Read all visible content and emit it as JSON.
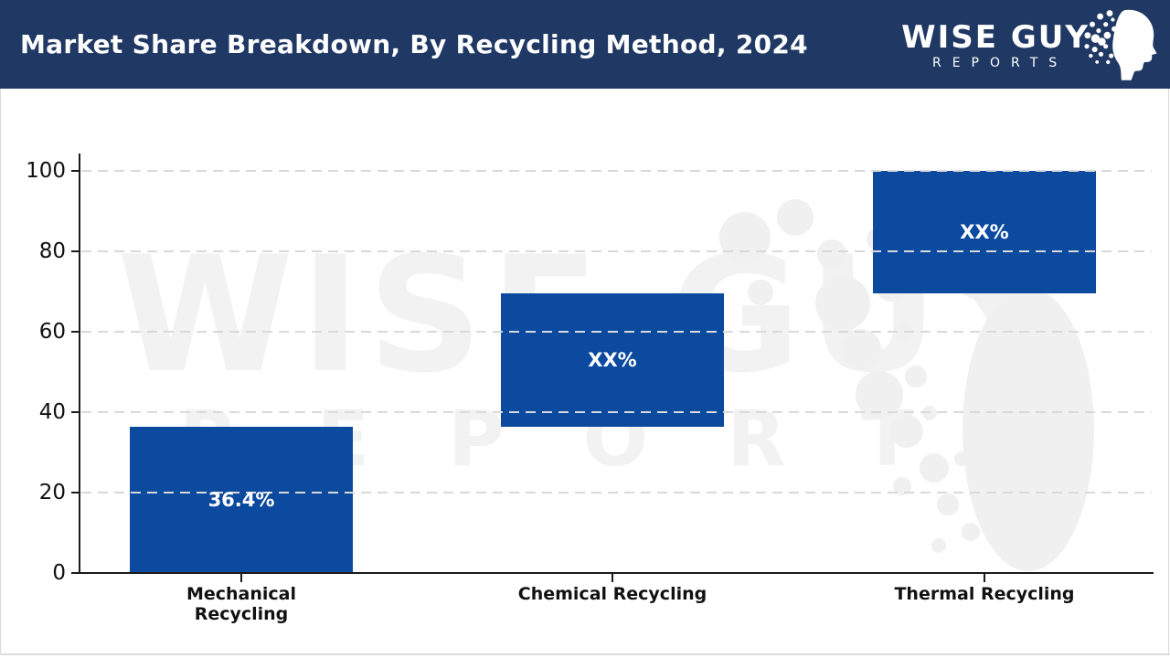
{
  "header": {
    "title": "Market Share Breakdown, By Recycling Method, 2024",
    "background_color": "#1f3864"
  },
  "logo": {
    "line1": "WISE GUY",
    "line2": "REPORTS"
  },
  "watermark": {
    "line1": "WISE GUY",
    "line2": "REPORTS"
  },
  "chart_data": {
    "type": "bar",
    "subtype": "floating-waterfall-segments",
    "title": "Market Share Breakdown, By Recycling Method, 2024",
    "categories": [
      "Mechanical\nRecycling",
      "Chemical Recycling",
      "Thermal Recycling"
    ],
    "bars": [
      {
        "category": "Mechanical\nRecycling",
        "start": 0,
        "end": 36.4,
        "label": "36.4%"
      },
      {
        "category": "Chemical Recycling",
        "start": 36.4,
        "end": 69.5,
        "label": "XX%"
      },
      {
        "category": "Thermal Recycling",
        "start": 69.5,
        "end": 100,
        "label": "XX%"
      }
    ],
    "yticks": [
      0,
      20,
      40,
      60,
      80,
      100
    ],
    "ylim": [
      0,
      100
    ],
    "xlabel": "",
    "ylabel": "",
    "bar_color": "#0b4a9f",
    "grid": "dashed horizontal gridlines drawn above bars",
    "legend": "none"
  }
}
